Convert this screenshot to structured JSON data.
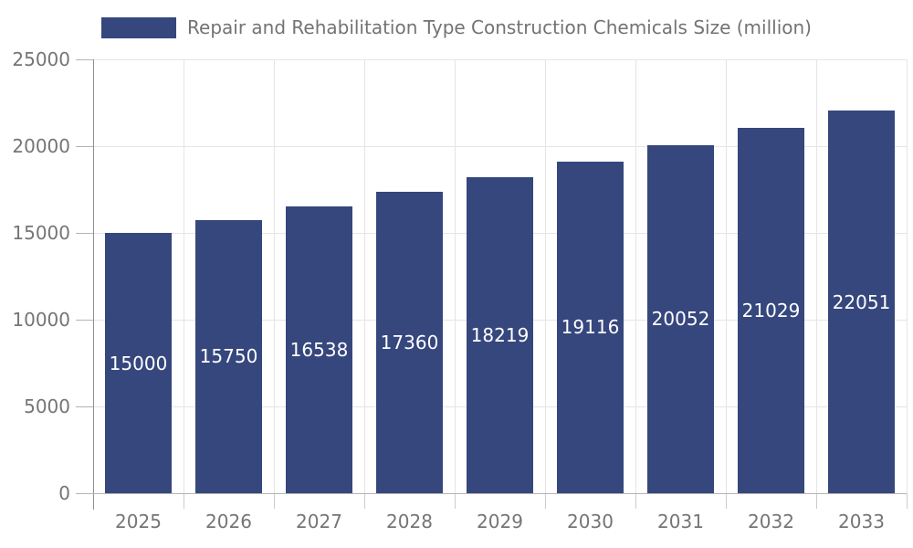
{
  "legend": {
    "label": "Repair and Rehabilitation Type Construction Chemicals Size (million)"
  },
  "chart_data": {
    "type": "bar",
    "title": "Repair and Rehabilitation Type Construction Chemicals Size (million)",
    "categories": [
      "2025",
      "2026",
      "2027",
      "2028",
      "2029",
      "2030",
      "2031",
      "2032",
      "2033"
    ],
    "values": [
      15000,
      15750,
      16538,
      17360,
      18219,
      19116,
      20052,
      21029,
      22051
    ],
    "xlabel": "",
    "ylabel": "",
    "ylim": [
      0,
      25000
    ],
    "yticks": [
      0,
      5000,
      10000,
      15000,
      20000,
      25000
    ],
    "grid": true,
    "legend_position": "top",
    "bar_label_position": "inside-center"
  },
  "colors": {
    "bar": "#36477d",
    "value_label": "#ffffff",
    "axis_text": "#757575",
    "legend_text": "#737373",
    "grid_line": "#e5e5e5",
    "y_axis_line": "#909090",
    "x_axis_line": "#b4b4b4",
    "y_tick": "#b4b4b4",
    "x_tick": "#cccccc",
    "background": "#ffffff"
  }
}
